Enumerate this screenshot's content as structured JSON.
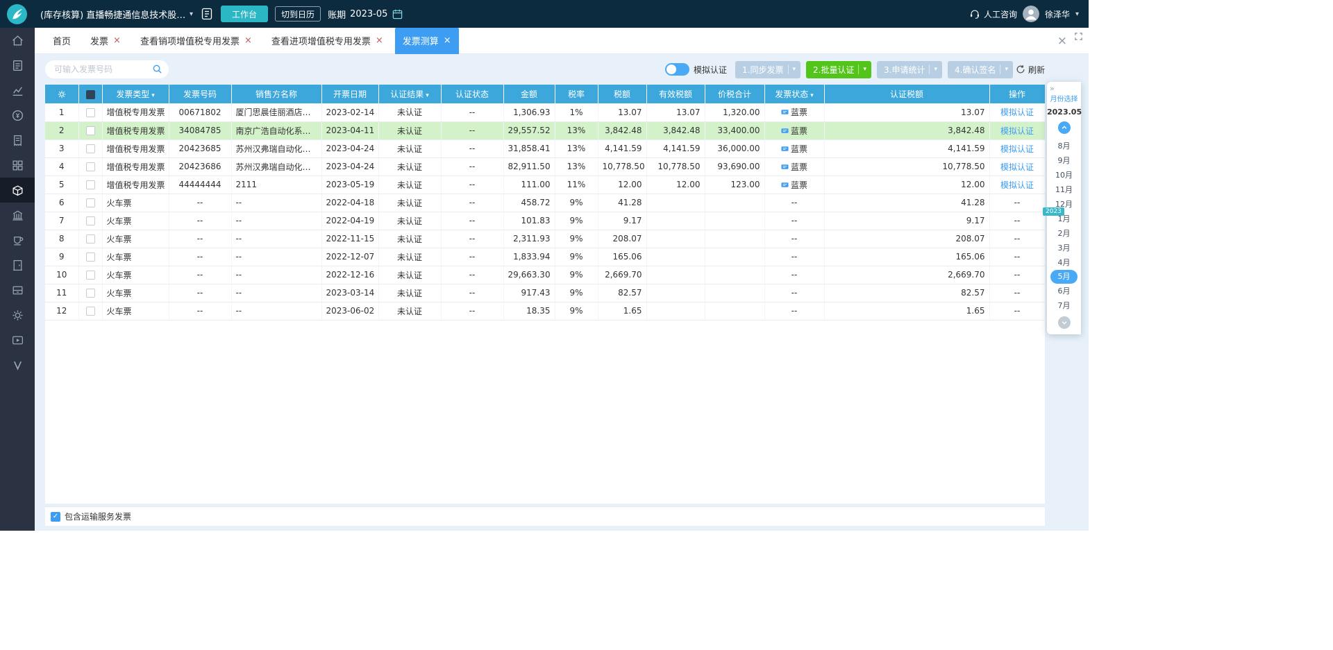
{
  "colors": {
    "accent_blue": "#3d9df3",
    "table_header_blue": "#3ba7db",
    "brand_cyan": "#2bb7c6",
    "action_green": "#52c41a",
    "row_highlight_green": "#d4f2ca",
    "topbar_bg": "#0d2b3f",
    "sidebar_bg": "#2b3242"
  },
  "icons": [
    "app-logo",
    "account-book-icon",
    "calendar-icon",
    "headset-icon",
    "avatar",
    "chevron-down-icon",
    "search-icon",
    "refresh-icon",
    "close-icon",
    "fullscreen-icon",
    "column-settings-icon",
    "blue-ticket-icon",
    "collapse-panel-icon",
    "scroll-up-icon",
    "scroll-down-icon"
  ],
  "topbar": {
    "company": "(库存核算) 直播畅捷通信息技术股份...",
    "workbench_label": "工作台",
    "calendar_switch_label": "切到日历",
    "period_label": "账期",
    "period_value": "2023-05",
    "support_label": "人工咨询",
    "user_name": "徐泽华"
  },
  "sidebar": {
    "active_index": 6,
    "icons": [
      "home",
      "documents",
      "reports",
      "funds",
      "bills",
      "modules",
      "inventory",
      "assets",
      "service",
      "checkout",
      "drawer",
      "settings",
      "video",
      "brand-v"
    ]
  },
  "tabs": [
    {
      "label": "首页",
      "closable": false,
      "active": false
    },
    {
      "label": "发票",
      "closable": true,
      "active": false
    },
    {
      "label": "查看销项增值税专用发票",
      "closable": true,
      "active": false
    },
    {
      "label": "查看进项增值税专用发票",
      "closable": true,
      "active": false
    },
    {
      "label": "发票测算",
      "closable": true,
      "active": true
    }
  ],
  "toolbar": {
    "search_placeholder": "可输入发票号码",
    "toggle_label": "模拟认证",
    "buttons": [
      {
        "label": "1.同步发票",
        "style": "disabled",
        "dropdown": true
      },
      {
        "label": "2.批量认证",
        "style": "green",
        "dropdown": true
      },
      {
        "label": "3.申请统计",
        "style": "disabled",
        "dropdown": true
      },
      {
        "label": "4.确认签名",
        "style": "disabled",
        "dropdown": true
      }
    ],
    "refresh_label": "刷新"
  },
  "table": {
    "columns": [
      {
        "label": "发票类型",
        "filter": true
      },
      {
        "label": "发票号码",
        "filter": false
      },
      {
        "label": "销售方名称",
        "filter": false
      },
      {
        "label": "开票日期",
        "filter": false
      },
      {
        "label": "认证结果",
        "filter": true
      },
      {
        "label": "认证状态",
        "filter": false
      },
      {
        "label": "金额",
        "filter": false
      },
      {
        "label": "税率",
        "filter": false
      },
      {
        "label": "税额",
        "filter": false
      },
      {
        "label": "有效税额",
        "filter": false
      },
      {
        "label": "价税合计",
        "filter": false
      },
      {
        "label": "发票状态",
        "filter": true
      },
      {
        "label": "认证税额",
        "filter": false
      },
      {
        "label": "操作",
        "filter": false
      }
    ],
    "rows": [
      {
        "no": "1",
        "type": "增值税专用发票",
        "number": "00671802",
        "seller": "厦门思晨佳丽酒店管理有限...",
        "date": "2023-02-14",
        "result": "未认证",
        "status": "--",
        "amount": "1,306.93",
        "rate": "1%",
        "tax": "13.07",
        "valid_tax": "13.07",
        "total": "1,320.00",
        "inv_status": "蓝票",
        "cert_tax": "13.07",
        "action": "模拟认证",
        "highlight": false
      },
      {
        "no": "2",
        "type": "增值税专用发票",
        "number": "34084785",
        "seller": "南京广浩自动化系统有限责...",
        "date": "2023-04-11",
        "result": "未认证",
        "status": "--",
        "amount": "29,557.52",
        "rate": "13%",
        "tax": "3,842.48",
        "valid_tax": "3,842.48",
        "total": "33,400.00",
        "inv_status": "蓝票",
        "cert_tax": "3,842.48",
        "action": "模拟认证",
        "highlight": true
      },
      {
        "no": "3",
        "type": "增值税专用发票",
        "number": "20423685",
        "seller": "苏州汉弗瑞自动化科技有限...",
        "date": "2023-04-24",
        "result": "未认证",
        "status": "--",
        "amount": "31,858.41",
        "rate": "13%",
        "tax": "4,141.59",
        "valid_tax": "4,141.59",
        "total": "36,000.00",
        "inv_status": "蓝票",
        "cert_tax": "4,141.59",
        "action": "模拟认证",
        "highlight": false
      },
      {
        "no": "4",
        "type": "增值税专用发票",
        "number": "20423686",
        "seller": "苏州汉弗瑞自动化科技有限...",
        "date": "2023-04-24",
        "result": "未认证",
        "status": "--",
        "amount": "82,911.50",
        "rate": "13%",
        "tax": "10,778.50",
        "valid_tax": "10,778.50",
        "total": "93,690.00",
        "inv_status": "蓝票",
        "cert_tax": "10,778.50",
        "action": "模拟认证",
        "highlight": false
      },
      {
        "no": "5",
        "type": "增值税专用发票",
        "number": "44444444",
        "seller": "2111",
        "date": "2023-05-19",
        "result": "未认证",
        "status": "--",
        "amount": "111.00",
        "rate": "11%",
        "tax": "12.00",
        "valid_tax": "12.00",
        "total": "123.00",
        "inv_status": "蓝票",
        "cert_tax": "12.00",
        "action": "模拟认证",
        "highlight": false
      },
      {
        "no": "6",
        "type": "火车票",
        "number": "--",
        "seller": "--",
        "date": "2022-04-18",
        "result": "未认证",
        "status": "--",
        "amount": "458.72",
        "rate": "9%",
        "tax": "41.28",
        "valid_tax": "",
        "total": "",
        "inv_status": "--",
        "cert_tax": "41.28",
        "action": "--",
        "highlight": false
      },
      {
        "no": "7",
        "type": "火车票",
        "number": "--",
        "seller": "--",
        "date": "2022-04-19",
        "result": "未认证",
        "status": "--",
        "amount": "101.83",
        "rate": "9%",
        "tax": "9.17",
        "valid_tax": "",
        "total": "",
        "inv_status": "--",
        "cert_tax": "9.17",
        "action": "--",
        "highlight": false
      },
      {
        "no": "8",
        "type": "火车票",
        "number": "--",
        "seller": "--",
        "date": "2022-11-15",
        "result": "未认证",
        "status": "--",
        "amount": "2,311.93",
        "rate": "9%",
        "tax": "208.07",
        "valid_tax": "",
        "total": "",
        "inv_status": "--",
        "cert_tax": "208.07",
        "action": "--",
        "highlight": false
      },
      {
        "no": "9",
        "type": "火车票",
        "number": "--",
        "seller": "--",
        "date": "2022-12-07",
        "result": "未认证",
        "status": "--",
        "amount": "1,833.94",
        "rate": "9%",
        "tax": "165.06",
        "valid_tax": "",
        "total": "",
        "inv_status": "--",
        "cert_tax": "165.06",
        "action": "--",
        "highlight": false
      },
      {
        "no": "10",
        "type": "火车票",
        "number": "--",
        "seller": "--",
        "date": "2022-12-16",
        "result": "未认证",
        "status": "--",
        "amount": "29,663.30",
        "rate": "9%",
        "tax": "2,669.70",
        "valid_tax": "",
        "total": "",
        "inv_status": "--",
        "cert_tax": "2,669.70",
        "action": "--",
        "highlight": false
      },
      {
        "no": "11",
        "type": "火车票",
        "number": "--",
        "seller": "--",
        "date": "2023-03-14",
        "result": "未认证",
        "status": "--",
        "amount": "917.43",
        "rate": "9%",
        "tax": "82.57",
        "valid_tax": "",
        "total": "",
        "inv_status": "--",
        "cert_tax": "82.57",
        "action": "--",
        "highlight": false
      },
      {
        "no": "12",
        "type": "火车票",
        "number": "--",
        "seller": "--",
        "date": "2023-06-02",
        "result": "未认证",
        "status": "--",
        "amount": "18.35",
        "rate": "9%",
        "tax": "1.65",
        "valid_tax": "",
        "total": "",
        "inv_status": "--",
        "cert_tax": "1.65",
        "action": "--",
        "highlight": false
      }
    ]
  },
  "month_panel": {
    "title": "月份选择",
    "current": "2023.05",
    "expand_glyph": "»",
    "year_badge": "2023",
    "year_break_index": 5,
    "months": [
      "8月",
      "9月",
      "10月",
      "11月",
      "12月",
      "1月",
      "2月",
      "3月",
      "4月",
      "5月",
      "6月",
      "7月"
    ],
    "selected": "5月"
  },
  "footer": {
    "transport_checkbox_label": "包含运输服务发票",
    "transport_checkbox_checked": true
  }
}
